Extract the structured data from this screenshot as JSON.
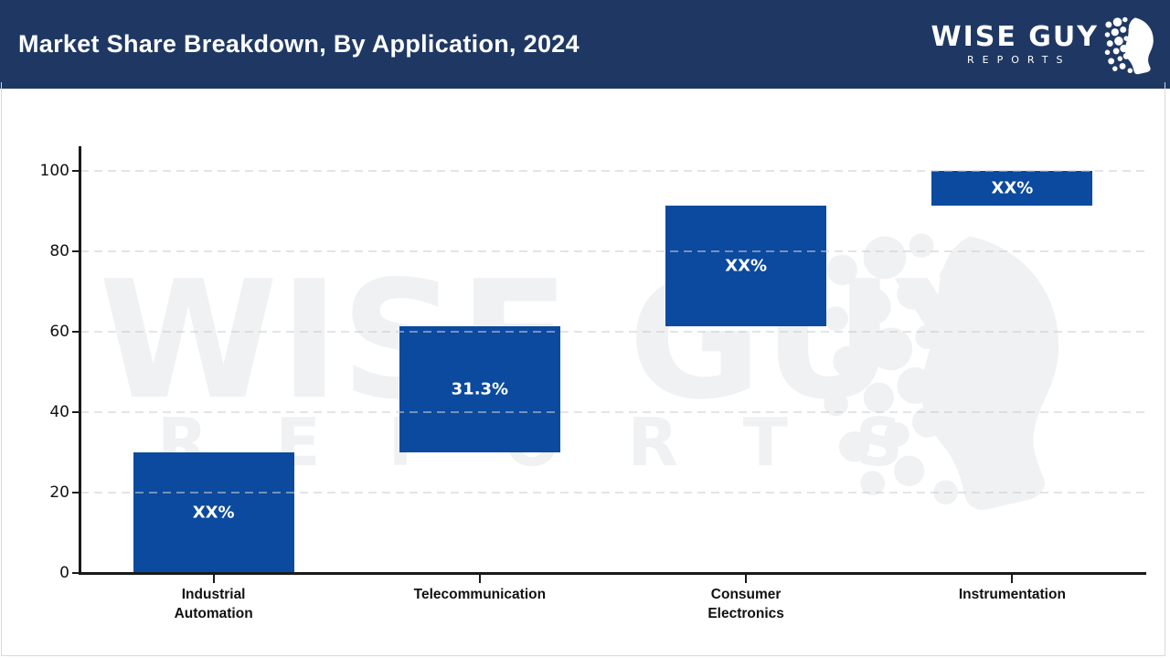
{
  "header": {
    "title": "Market Share Breakdown, By Application, 2024",
    "logo": {
      "line1": "WISE GUY",
      "line2": "REPORTS"
    }
  },
  "watermark": {
    "line1": "WISE GUY",
    "line2": "REPORTS"
  },
  "colors": {
    "header_bg": "#1f3863",
    "bar": "#0b4a9e",
    "grid_dash": "#dcdcdc",
    "axis": "#1a1a1a",
    "watermark": "#f0f1f3"
  },
  "chart_data": {
    "type": "bar",
    "subtype": "waterfall-floating-bars",
    "title": "Market Share Breakdown, By Application, 2024",
    "categories": [
      "Industrial\nAutomation",
      "Telecommunication",
      "Consumer\nElectronics",
      "Instrumentation"
    ],
    "segments": [
      {
        "category": "Industrial Automation",
        "start": 0,
        "end": 30,
        "label": "XX%"
      },
      {
        "category": "Telecommunication",
        "start": 30,
        "end": 61.3,
        "label": "31.3%"
      },
      {
        "category": "Consumer Electronics",
        "start": 61.3,
        "end": 91.3,
        "label": "XX%"
      },
      {
        "category": "Instrumentation",
        "start": 91.3,
        "end": 100,
        "label": "XX%"
      }
    ],
    "ylabel": "",
    "xlabel": "",
    "yticks": [
      0,
      20,
      40,
      60,
      80,
      100
    ],
    "ylim": [
      0,
      106
    ],
    "grid": "horizontal-dashed, drawn over bars",
    "legend": false,
    "bar_color": "#0b4a9e",
    "value_label_color": "#ffffff"
  }
}
